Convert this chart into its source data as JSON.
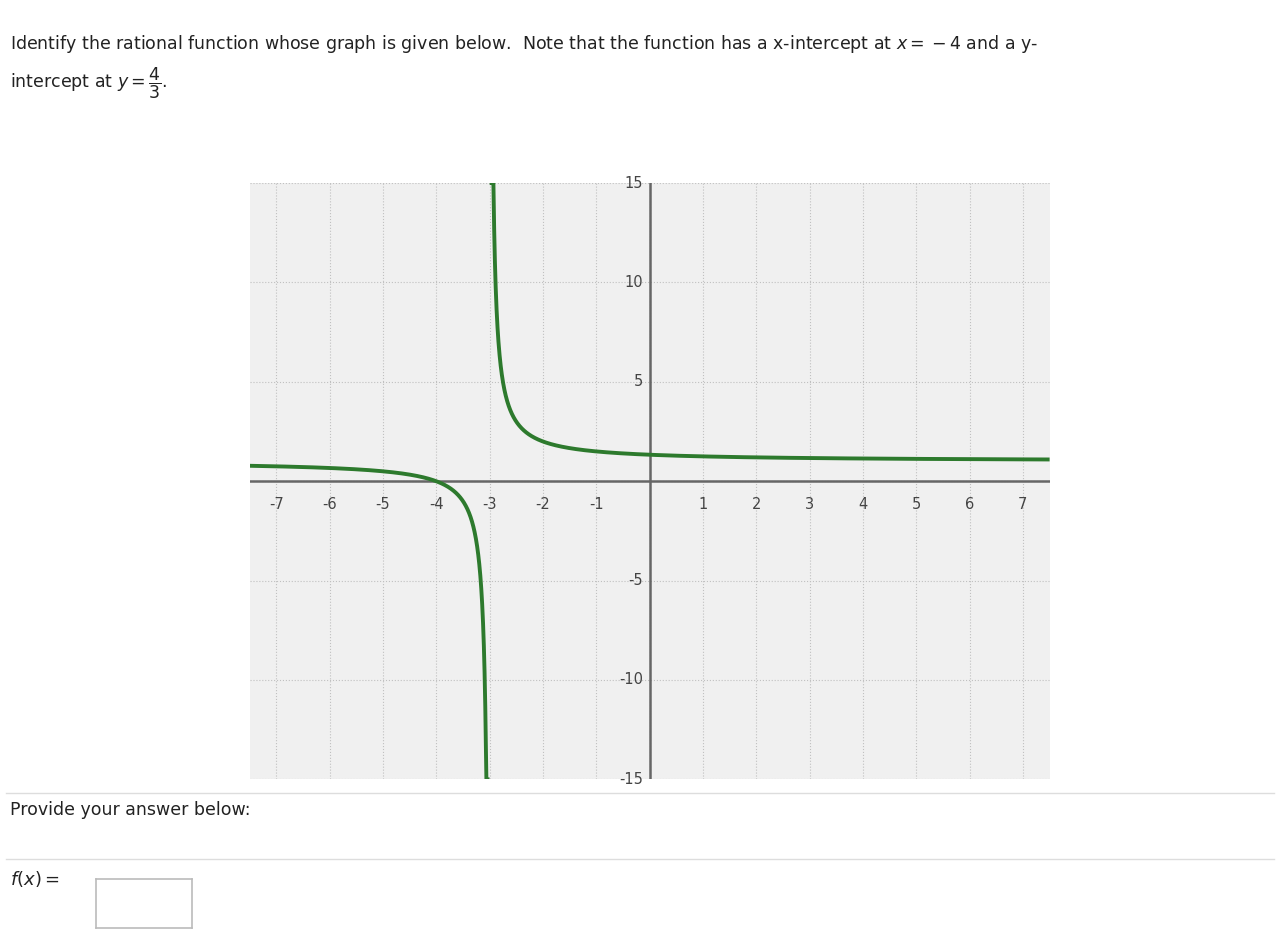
{
  "xmin": -7.5,
  "xmax": 7.5,
  "ymin": -15,
  "ymax": 15,
  "xticks": [
    -7,
    -6,
    -5,
    -4,
    -3,
    -2,
    -1,
    1,
    2,
    3,
    4,
    5,
    6,
    7
  ],
  "yticks": [
    -15,
    -10,
    -5,
    5,
    10,
    15
  ],
  "vertical_asymptote": -3,
  "curve_color": "#2d7a2d",
  "axis_color": "#666666",
  "grid_color": "#c0c0c0",
  "plot_background": "#f0f0f0",
  "fig_background": "#ffffff",
  "bottom_text": "Provide your answer below:",
  "line1": "Identify the rational function whose graph is given below.  Note that the function has a x-intercept at ",
  "line1_end": "x = −4 and a y-",
  "line2": "intercept at y = 4/3."
}
